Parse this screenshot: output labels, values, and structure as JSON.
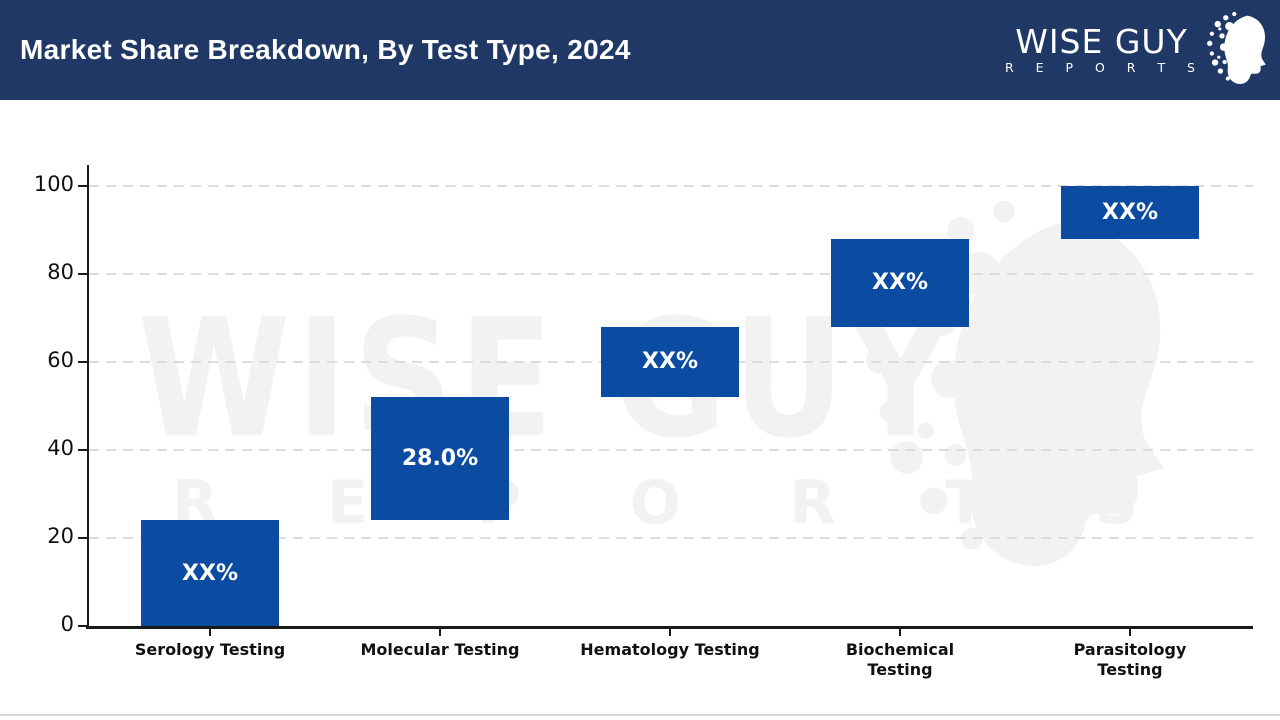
{
  "header": {
    "title": "Market Share Breakdown, By Test Type, 2024",
    "logo": {
      "line1": "WISE GUY",
      "line2": "R E P O R T S"
    }
  },
  "watermark": {
    "line1": "WISE GUY",
    "line2": "R E P O R T S"
  },
  "chart_data": {
    "type": "bar",
    "subtype": "waterfall-floating-bars",
    "title": "Market Share Breakdown, By Test Type, 2024",
    "categories": [
      "Serology Testing",
      "Molecular Testing",
      "Hematology Testing",
      "Biochemical\nTesting",
      "Parasitology\nTesting"
    ],
    "segments": [
      {
        "category": "Serology Testing",
        "start": 0,
        "end": 24,
        "label": "XX%"
      },
      {
        "category": "Molecular Testing",
        "start": 24,
        "end": 52,
        "label": "28.0%"
      },
      {
        "category": "Hematology Testing",
        "start": 52,
        "end": 68,
        "label": "XX%"
      },
      {
        "category": "Biochemical Testing",
        "start": 68,
        "end": 88,
        "label": "XX%"
      },
      {
        "category": "Parasitology Testing",
        "start": 88,
        "end": 100,
        "label": "XX%"
      }
    ],
    "yticks": [
      0,
      20,
      40,
      60,
      80,
      100
    ],
    "ylim": [
      0,
      105
    ],
    "xlabel": "",
    "ylabel": "",
    "grid": "horizontal-dashed",
    "legend": "none",
    "bar_color": "#0c4ba2",
    "bar_label_color": "#ffffff"
  },
  "colors": {
    "header_bg": "#1f3865",
    "watermark": "#f2f2f2",
    "axis": "#1a1a1a",
    "grid": "#dcdcdc"
  }
}
